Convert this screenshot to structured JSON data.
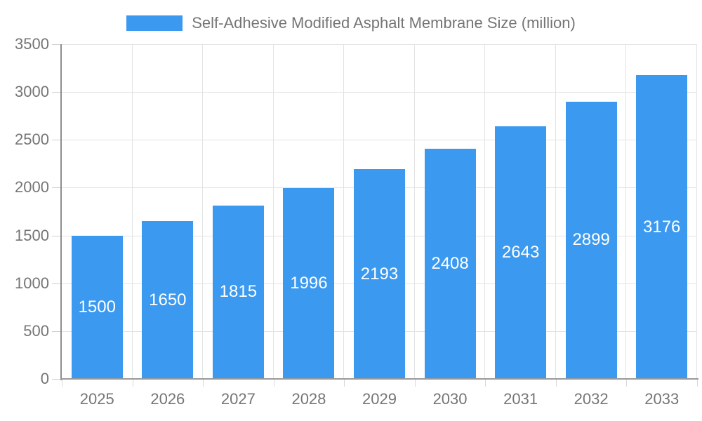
{
  "legend": {
    "label": "Self-Adhesive Modified Asphalt Membrane Size (million)"
  },
  "chart_data": {
    "type": "bar",
    "title": "Self-Adhesive Modified Asphalt Membrane Size (million)",
    "categories": [
      "2025",
      "2026",
      "2027",
      "2028",
      "2029",
      "2030",
      "2031",
      "2032",
      "2033"
    ],
    "values": [
      1500,
      1650,
      1815,
      1996,
      2193,
      2408,
      2643,
      2899,
      3176
    ],
    "xlabel": "",
    "ylabel": "",
    "ylim": [
      0,
      3500
    ],
    "yticks": [
      0,
      500,
      1000,
      1500,
      2000,
      2500,
      3000,
      3500
    ],
    "grid": true,
    "legend_position": "top-center",
    "bar_color": "#3B99F0",
    "value_label_color": "#ffffff",
    "axis_text_color": "#757575",
    "gridline_color": "#e3e3e3"
  }
}
